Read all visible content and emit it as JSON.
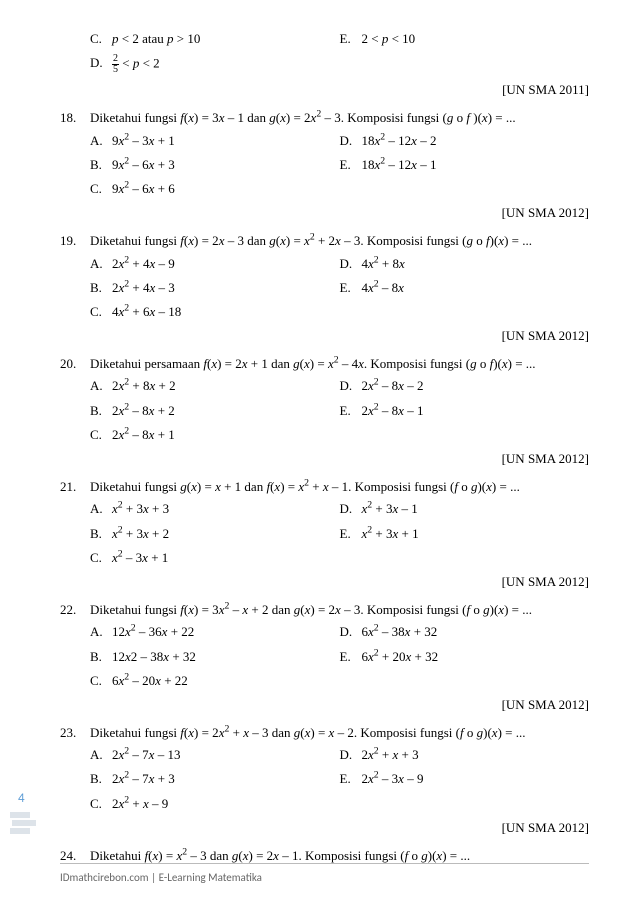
{
  "partial_q": {
    "optC": "<i>p</i> < 2 atau <i>p</i> > 10",
    "optD": "<span class='frac'><span class='n'>2</span><span class='d'>5</span></span> < <i>p</i> < 2",
    "optE": "2 < <i>p</i> < 10",
    "source": "[UN SMA 2011]"
  },
  "questions": [
    {
      "num": "18.",
      "text": "Diketahui fungsi <i>f</i>(<i>x</i>) = 3<i>x</i> – 1 dan <i>g</i>(<i>x</i>) = 2<i>x</i><sup>2</sup> – 3. Komposisi fungsi (<i>g</i> o <i>f</i> )(<i>x</i>) = ...",
      "A": "9<i>x</i><sup>2</sup> – 3<i>x</i> + 1",
      "B": "9<i>x</i><sup>2</sup> – 6<i>x</i> + 3",
      "C": "9<i>x</i><sup>2</sup> – 6<i>x</i> + 6",
      "D": "18<i>x</i><sup>2</sup> – 12<i>x</i> – 2",
      "E": "18<i>x</i><sup>2</sup> – 12<i>x</i> – 1",
      "source": "[UN SMA 2012]"
    },
    {
      "num": "19.",
      "text": "Diketahui fungsi <i>f</i>(<i>x</i>) = 2<i>x</i> – 3 dan <i>g</i>(<i>x</i>) = <i>x</i><sup>2</sup> + 2<i>x</i> – 3. Komposisi fungsi (<i>g</i> o <i>f</i>)(<i>x</i>) = ...",
      "A": "2<i>x</i><sup>2</sup> + 4<i>x</i> – 9",
      "B": "2<i>x</i><sup>2</sup> + 4<i>x</i> – 3",
      "C": "4<i>x</i><sup>2</sup> + 6<i>x</i> – 18",
      "D": "4<i>x</i><sup>2</sup> + 8<i>x</i>",
      "E": "4<i>x</i><sup>2</sup> – 8<i>x</i>",
      "source": "[UN SMA 2012]"
    },
    {
      "num": "20.",
      "text": "Diketahui persamaan <i>f</i>(<i>x</i>) = 2<i>x</i> + 1 dan <i>g</i>(<i>x</i>) = <i>x</i><sup>2</sup> – 4<i>x</i>. Komposisi fungsi (<i>g</i> o <i>f</i>)(<i>x</i>) = ...",
      "A": "2<i>x</i><sup>2</sup> + 8<i>x</i> + 2",
      "B": "2<i>x</i><sup>2</sup> – 8<i>x</i> + 2",
      "C": "2<i>x</i><sup>2</sup> – 8<i>x</i> + 1",
      "D": "2<i>x</i><sup>2</sup> – 8<i>x</i> – 2",
      "E": "2<i>x</i><sup>2</sup> – 8<i>x</i> – 1",
      "source": "[UN SMA 2012]"
    },
    {
      "num": "21.",
      "text": "Diketahui fungsi <i>g</i>(<i>x</i>) = <i>x</i> + 1 dan <i>f</i>(<i>x</i>) = <i>x</i><sup>2</sup> + <i>x</i> – 1. Komposisi fungsi (<i>f</i> o <i>g</i>)(<i>x</i>) = ...",
      "A": "<i>x</i><sup>2</sup> + 3<i>x</i> + 3",
      "B": "<i>x</i><sup>2</sup> + 3<i>x</i> + 2",
      "C": "<i>x</i><sup>2</sup> – 3<i>x</i> + 1",
      "D": "<i>x</i><sup>2</sup> + 3<i>x</i> – 1",
      "E": "<i>x</i><sup>2</sup> + 3<i>x</i> + 1",
      "source": "[UN SMA 2012]"
    },
    {
      "num": "22.",
      "text": "Diketahui fungsi <i>f</i>(<i>x</i>) = 3<i>x</i><sup>2</sup> – <i>x</i> + 2 dan <i>g</i>(<i>x</i>) = 2<i>x</i> – 3. Komposisi fungsi (<i>f</i> o <i>g</i>)(<i>x</i>) = ...",
      "A": "12<i>x</i><sup>2</sup> – 36<i>x</i> + 22",
      "B": "12<i>x</i>2 – 38<i>x</i> + 32",
      "C": "6<i>x</i><sup>2</sup> – 20<i>x</i> + 22",
      "D": "6<i>x</i><sup>2</sup> – 38<i>x</i> + 32",
      "E": "6<i>x</i><sup>2</sup> + 20<i>x</i> + 32",
      "source": "[UN SMA 2012]"
    },
    {
      "num": "23.",
      "text": "Diketahui fungsi <i>f</i>(<i>x</i>) = 2<i>x</i><sup>2</sup> + <i>x</i> – 3 dan <i>g</i>(<i>x</i>) = <i>x</i> – 2. Komposisi fungsi (<i>f</i> o <i>g</i>)(<i>x</i>) = ...",
      "A": "2<i>x</i><sup>2</sup> – 7<i>x</i> – 13",
      "B": "2<i>x</i><sup>2</sup> – 7<i>x</i> + 3",
      "C": "2<i>x</i><sup>2</sup> + <i>x</i> – 9",
      "D": "2<i>x</i><sup>2</sup> + <i>x</i> + 3",
      "E": "2<i>x</i><sup>2</sup> – 3<i>x</i> – 9",
      "source": "[UN SMA 2012]"
    },
    {
      "num": "24.",
      "text": "Diketahui <i>f</i>(<i>x</i>) = <i>x</i><sup>2</sup> – 3 dan <i>g</i>(<i>x</i>) = 2<i>x</i> – 1. Komposisi fungsi (<i>f</i> o <i>g</i>)(<i>x</i>) = ...",
      "noOpts": true
    }
  ],
  "pageNum": "4",
  "footer": "IDmathcirebon.com | E-Learning Matematika"
}
